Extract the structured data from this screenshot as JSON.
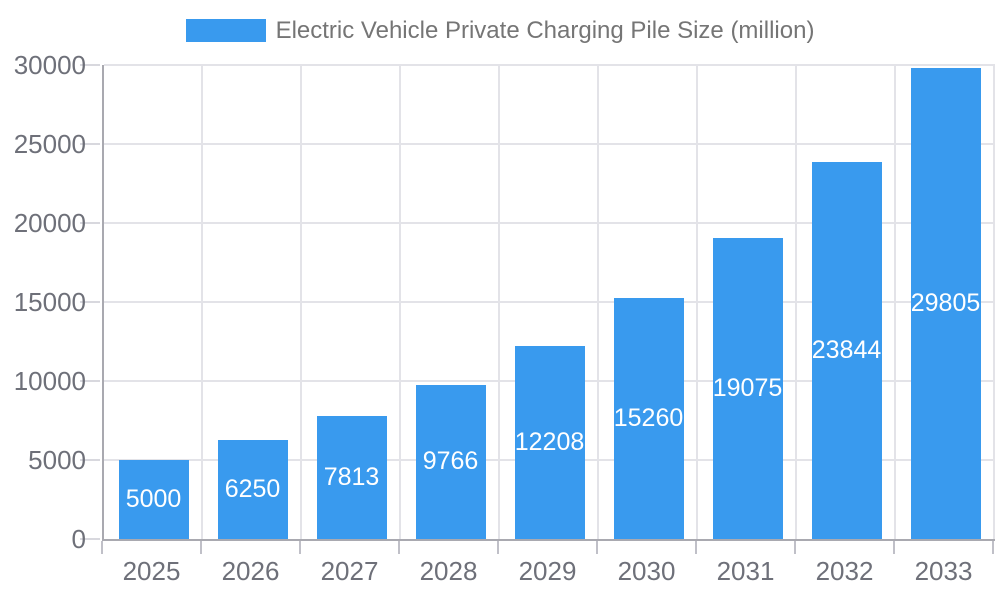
{
  "legend": {
    "label": "Electric Vehicle Private Charging Pile Size (million)"
  },
  "chart_data": {
    "type": "bar",
    "title": "",
    "legend": "Electric Vehicle Private Charging Pile Size (million)",
    "categories": [
      "2025",
      "2026",
      "2027",
      "2028",
      "2029",
      "2030",
      "2031",
      "2032",
      "2033"
    ],
    "values": [
      5000,
      6250,
      7813,
      9766,
      12208,
      15260,
      19075,
      23844,
      29805
    ],
    "xlabel": "",
    "ylabel": "",
    "ylim": [
      0,
      30000
    ],
    "ytick_step": 5000,
    "ytick_labels": [
      "0",
      "5000",
      "10000",
      "15000",
      "20000",
      "25000",
      "30000"
    ],
    "grid": true,
    "legend_position": "top-center",
    "bar_label_position": "inside-center",
    "colors": {
      "bar": "#399AEE",
      "bar_label": "#FFFFFF",
      "grid_line": "#E3E3E8",
      "axis_line": "#A9A9B0",
      "y_tick_mark": "#D8D8DE",
      "x_tick_mark": "#C0C0C8",
      "tick_text": "#6E7079",
      "legend_text": "#757575",
      "background": "#FFFFFF"
    }
  }
}
